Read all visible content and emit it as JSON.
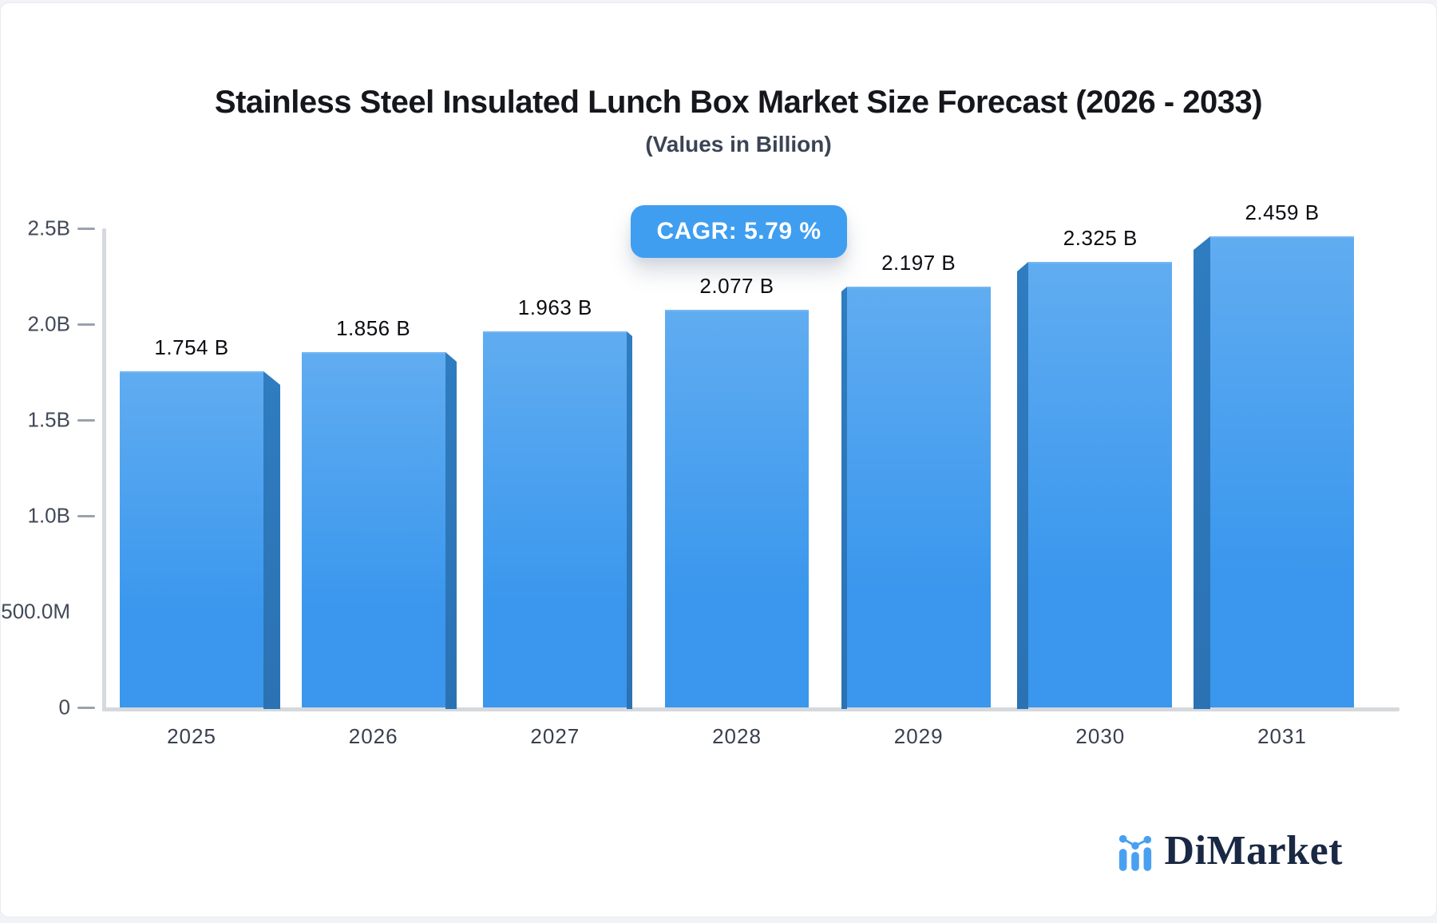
{
  "page": {
    "background_color": "#f1f3f6",
    "card_color": "#ffffff"
  },
  "header": {
    "title": "Stainless Steel Insulated Lunch Box Market Size Forecast (2026 - 2033)",
    "subtitle": "(Values in Billion)"
  },
  "badge": {
    "label": "CAGR: 5.79 %",
    "background": "#3f9ef0",
    "text_color": "#ffffff"
  },
  "chart_data": {
    "type": "bar",
    "title": "Stainless Steel Insulated Lunch Box Market Size Forecast (2026 - 2033)",
    "subtitle": "(Values in Billion)",
    "xlabel": "",
    "ylabel": "",
    "categories": [
      "2025",
      "2026",
      "2027",
      "2028",
      "2029",
      "2030",
      "2031"
    ],
    "values": [
      1.754,
      1.856,
      1.963,
      2.077,
      2.197,
      2.325,
      2.459
    ],
    "value_labels": [
      "1.754 B",
      "1.856 B",
      "1.963 B",
      "2.077 B",
      "2.197 B",
      "2.325 B",
      "2.459 B"
    ],
    "unit": "Billion",
    "ylim": [
      0,
      2.5
    ],
    "y_ticks": [
      {
        "label": "2.5B",
        "value": 2.5,
        "dash": true
      },
      {
        "label": "2.0B",
        "value": 2.0,
        "dash": true
      },
      {
        "label": "1.5B",
        "value": 1.5,
        "dash": true
      },
      {
        "label": "1.0B",
        "value": 1.0,
        "dash": true
      },
      {
        "label": "500.0M",
        "value": 0.5,
        "dash": false
      },
      {
        "label": "0",
        "value": 0,
        "dash": true
      }
    ],
    "grid": false,
    "legend": false,
    "style_3d": true,
    "colors": {
      "bar_top": "#60acf1",
      "bar_bottom": "#3a97ed",
      "bar_side_top": "#2f7cc0",
      "bar_side_bottom": "#2b72b3",
      "axis": "#d5d8dd",
      "tick_dash": "#9aa2ae"
    }
  },
  "footer": {
    "brand": "DiMarket",
    "logo_icon": "bar-chart-logo-icon",
    "brand_color": "#192843",
    "icon_color": "#4aa0f0"
  }
}
